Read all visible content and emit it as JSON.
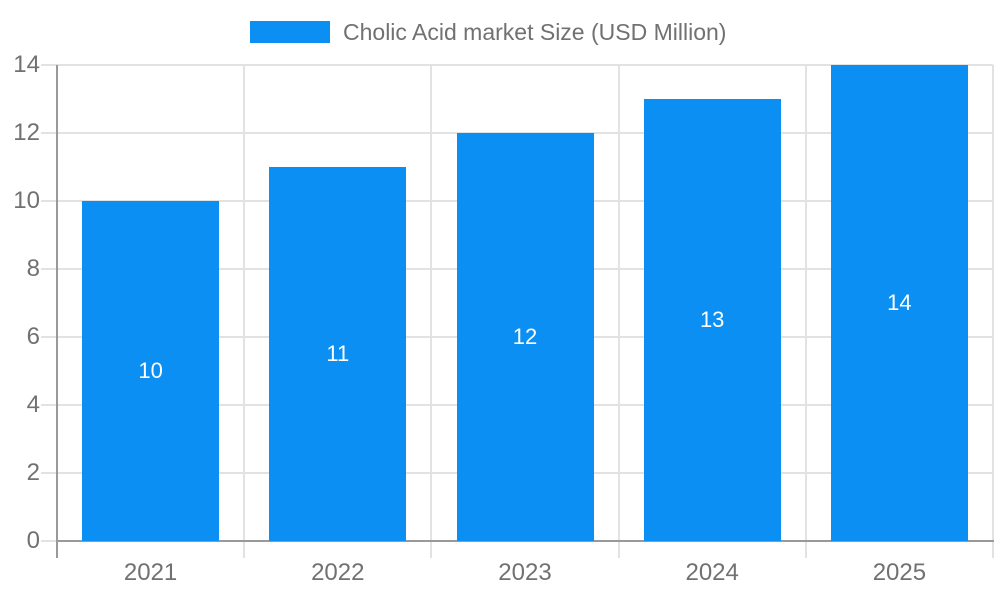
{
  "chart_data": {
    "type": "bar",
    "title": "Cholic Acid market Size (USD Million)",
    "legend_position": "top",
    "categories": [
      "2021",
      "2022",
      "2023",
      "2024",
      "2025"
    ],
    "series": [
      {
        "name": "Cholic Acid market Size (USD Million)",
        "values": [
          10,
          11,
          12,
          13,
          14
        ]
      }
    ],
    "data_labels": [
      10,
      11,
      12,
      13,
      14
    ],
    "xlabel": "",
    "ylabel": "",
    "ylim": [
      0,
      14
    ],
    "yticks": [
      0,
      2,
      4,
      6,
      8,
      10,
      12,
      14
    ],
    "grid": true
  },
  "colors": {
    "bar": "#0C8FF2",
    "axis_line": "#999999",
    "gridline": "#E2E2E2",
    "text": "#717171",
    "data_label": "#FFFFFF",
    "background": "#FFFFFF"
  }
}
